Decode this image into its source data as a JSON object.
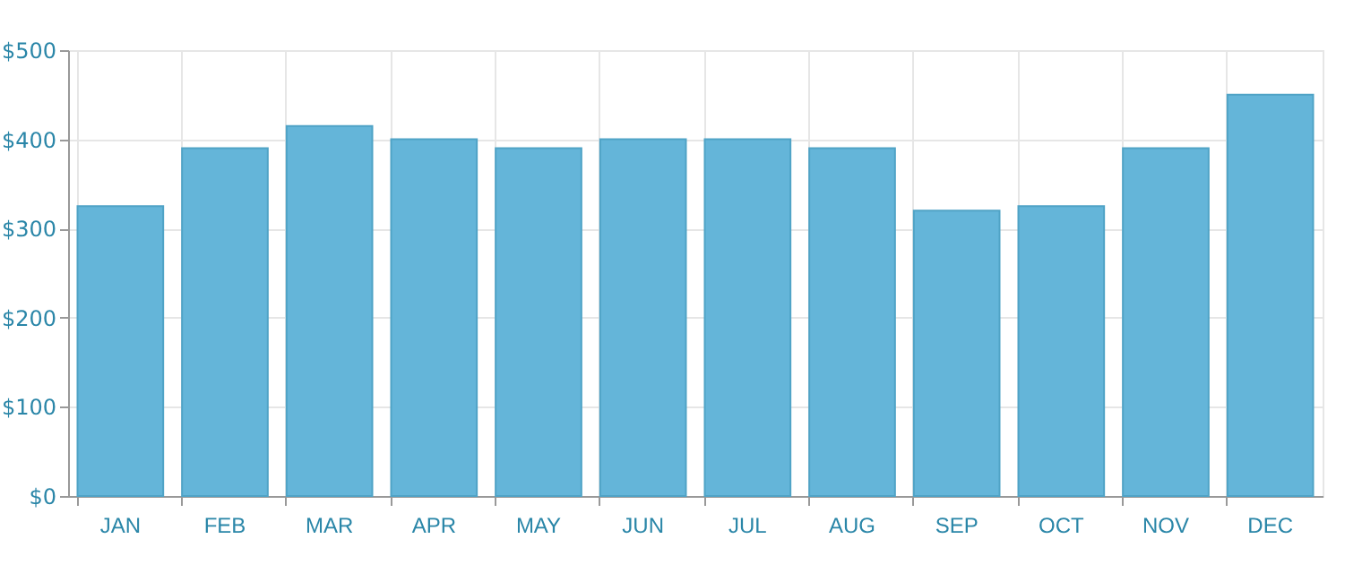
{
  "chart_data": {
    "type": "bar",
    "categories": [
      "JAN",
      "FEB",
      "MAR",
      "APR",
      "MAY",
      "JUN",
      "JUL",
      "AUG",
      "SEP",
      "OCT",
      "NOV",
      "DEC"
    ],
    "values": [
      325,
      390,
      415,
      400,
      390,
      400,
      400,
      390,
      320,
      325,
      390,
      450
    ],
    "color": "#64b5d9",
    "ylim": [
      0,
      500
    ],
    "yticks": [
      {
        "value": 0,
        "label": "$0"
      },
      {
        "value": 100,
        "label": "$100"
      },
      {
        "value": 200,
        "label": "$200"
      },
      {
        "value": 300,
        "label": "$300"
      },
      {
        "value": 400,
        "label": "$400"
      },
      {
        "value": 500,
        "label": "$500"
      }
    ],
    "grid": true
  }
}
